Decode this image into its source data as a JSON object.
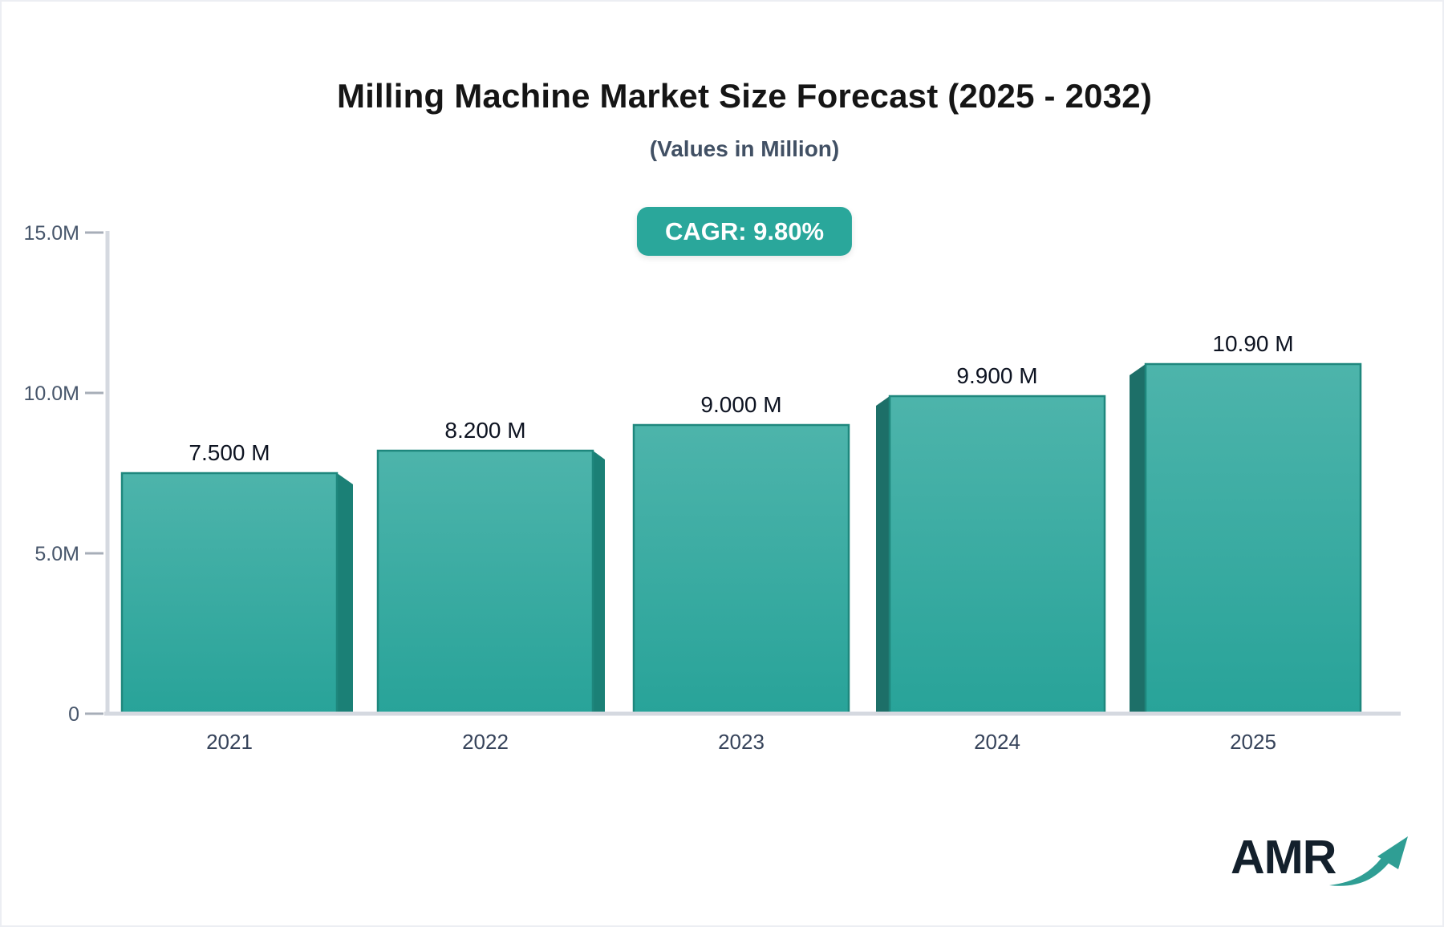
{
  "chart": {
    "title": "Milling Machine Market Size Forecast (2025 - 2032)",
    "subtitle": "(Values in Million)",
    "cagr_badge": "CAGR: 9.80%",
    "logo_text": "AMR"
  },
  "chart_data": {
    "type": "bar",
    "title": "Milling Machine Market Size Forecast (2025 - 2032)",
    "subtitle": "(Values in Million)",
    "cagr": "9.80%",
    "categories": [
      "2021",
      "2022",
      "2023",
      "2024",
      "2025"
    ],
    "values": [
      7.5,
      8.2,
      9.0,
      9.9,
      10.9
    ],
    "value_labels": [
      "7.500 M",
      "8.200 M",
      "9.000 M",
      "9.900 M",
      "10.90 M"
    ],
    "unit": "Million",
    "ylim": [
      0,
      15
    ],
    "y_ticks": [
      {
        "value": 0,
        "label": "0"
      },
      {
        "value": 5,
        "label": "5.0M"
      },
      {
        "value": 10,
        "label": "10.0M"
      },
      {
        "value": 15,
        "label": "15.0M"
      }
    ],
    "grid": "off",
    "legend": "none",
    "style": "pseudo-3d bars, perspective side shading toward center",
    "colors": {
      "bar_gradient_top": "#4db4ab",
      "bar_gradient_bottom": "#28a399",
      "bar_stroke": "#1e877d",
      "side_right_panel": "#1b8076",
      "side_left_panel": "#1d6f68",
      "badge_background": "#2aa79b",
      "axis_line": "#d5d9e0",
      "tick_mark": "#a7aeb8",
      "y_tick_label": "#47566b",
      "x_tick_label": "#36435a",
      "value_label": "#0d1321",
      "title": "#151515",
      "subtitle": "#415064",
      "logo_navy": "#13202c",
      "logo_teal": "#2f9e94"
    }
  }
}
